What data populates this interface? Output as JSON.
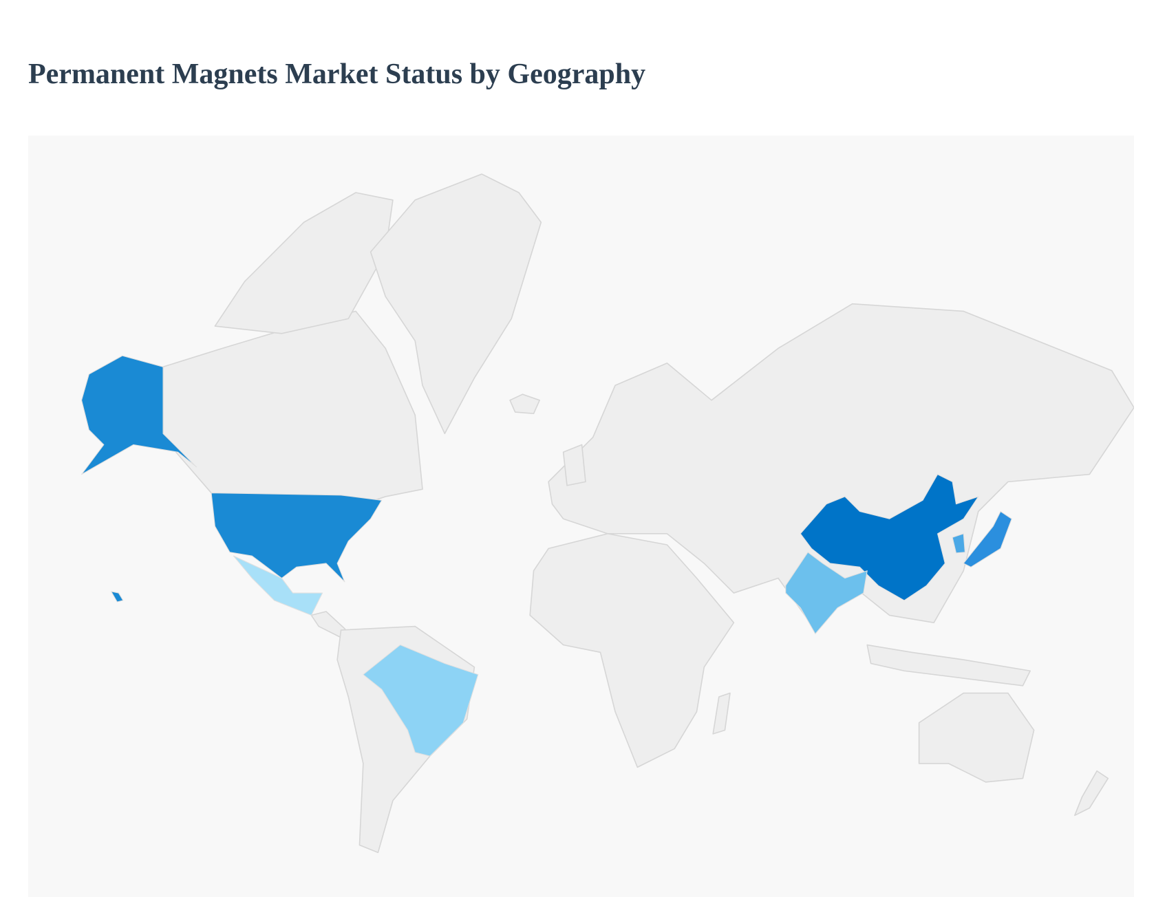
{
  "page": {
    "title": "Permanent Magnets Market Status by Geography"
  },
  "chart_data": {
    "type": "choropleth",
    "title": "Permanent Magnets Market Status by Geography",
    "base_color": "#eeeeee",
    "background_color": "#f8f8f8",
    "regions": [
      {
        "id": "china",
        "color": "#0074c8"
      },
      {
        "id": "united-states",
        "color": "#1a8ad4"
      },
      {
        "id": "japan",
        "color": "#2b8fde"
      },
      {
        "id": "south-korea",
        "color": "#4aa8e6"
      },
      {
        "id": "india",
        "color": "#6cc0ed"
      },
      {
        "id": "brazil",
        "color": "#8dd3f5"
      },
      {
        "id": "mexico",
        "color": "#a8e0f8"
      }
    ]
  }
}
